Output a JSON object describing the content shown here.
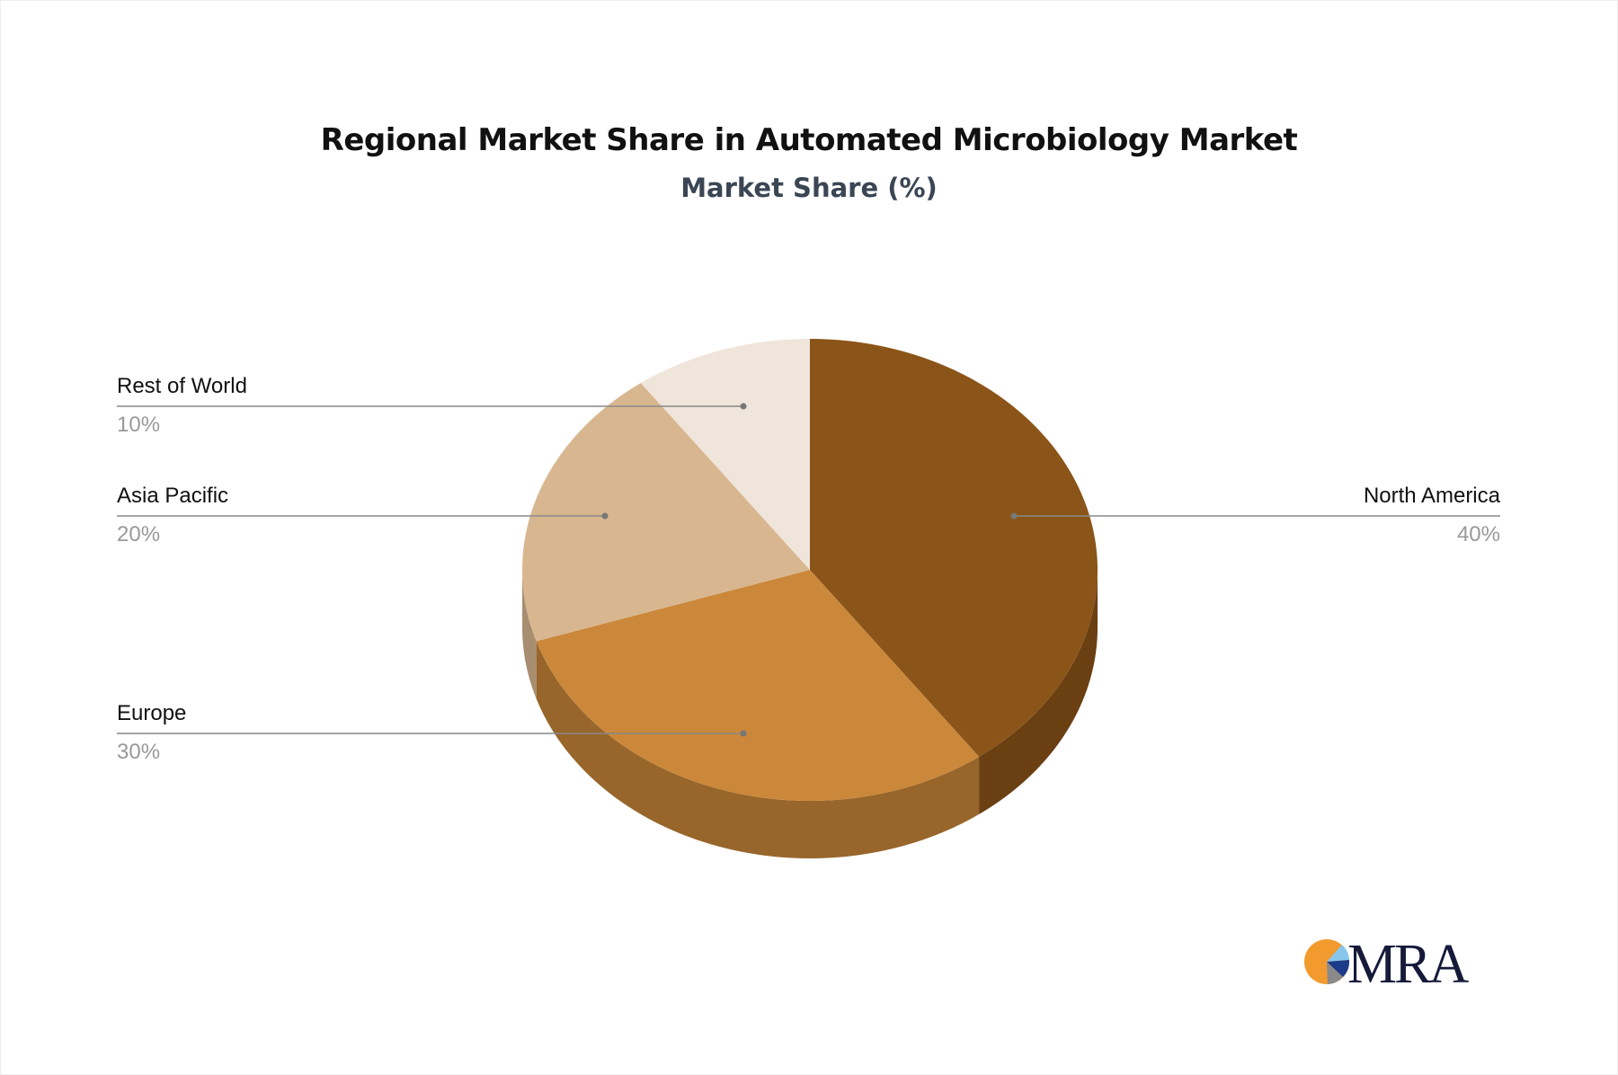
{
  "chart_data": {
    "type": "pie",
    "title": "Regional Market Share in Automated Microbiology Market",
    "subtitle": "Market Share (%)",
    "style": "3d",
    "slices": [
      {
        "label": "North America",
        "value": 40,
        "display": "40%",
        "color": "#8B5519",
        "side_color": "#6A3F12"
      },
      {
        "label": "Europe",
        "value": 30,
        "display": "30%",
        "color": "#CB883B",
        "side_color": "#98662B"
      },
      {
        "label": "Asia Pacific",
        "value": 20,
        "display": "20%",
        "color": "#D8B790",
        "side_color": "#A88E70"
      },
      {
        "label": "Rest of World",
        "value": 10,
        "display": "10%",
        "color": "#F0E5DB",
        "side_color": "#C8BDB2"
      }
    ]
  },
  "logo": {
    "text": "MRA",
    "colors": [
      "#F29A2E",
      "#1B2A5C",
      "#87C6EC",
      "#8A8A8A"
    ]
  }
}
